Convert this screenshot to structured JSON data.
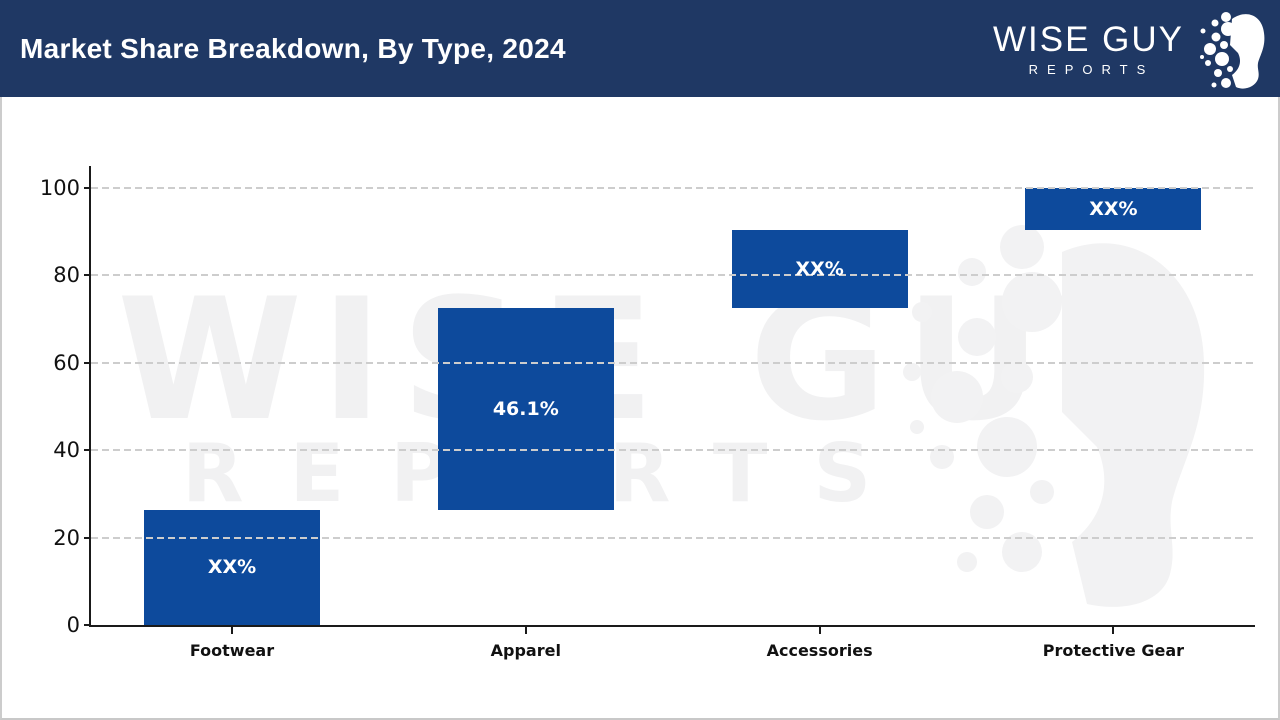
{
  "header": {
    "title": "Market Share Breakdown, By Type, 2024",
    "logo": {
      "line1": "WISE GUY",
      "line2": "REPORTS"
    }
  },
  "watermark": {
    "line1": "WISE GUY",
    "line2": "REPORTS"
  },
  "colors": {
    "header_bg": "#1f3864",
    "bar": "#0d4a9c",
    "bar_label": "#ffffff",
    "grid": "#cdcdcd",
    "axis": "#1a1a1a",
    "watermark": "#f1f1f2"
  },
  "chart_data": {
    "type": "bar",
    "subtype": "waterfall",
    "title": "Market Share Breakdown, By Type, 2024",
    "categories": [
      "Footwear",
      "Apparel",
      "Accessories",
      "Protective Gear"
    ],
    "segments": [
      {
        "category": "Footwear",
        "start": 0,
        "end": 26.4,
        "value": 26.4,
        "label": "XX%"
      },
      {
        "category": "Apparel",
        "start": 26.4,
        "end": 72.5,
        "value": 46.1,
        "label": "46.1%"
      },
      {
        "category": "Accessories",
        "start": 72.5,
        "end": 90.4,
        "value": 17.9,
        "label": "XX%"
      },
      {
        "category": "Protective Gear",
        "start": 90.4,
        "end": 100,
        "value": 9.6,
        "label": "XX%"
      }
    ],
    "xlabel": "",
    "ylabel": "",
    "yticks": [
      0,
      20,
      40,
      60,
      80,
      100
    ],
    "ylim": [
      0,
      105
    ],
    "grid": true,
    "legend": false,
    "bar_color": "#0d4a9c",
    "value_label_color": "#ffffff"
  }
}
